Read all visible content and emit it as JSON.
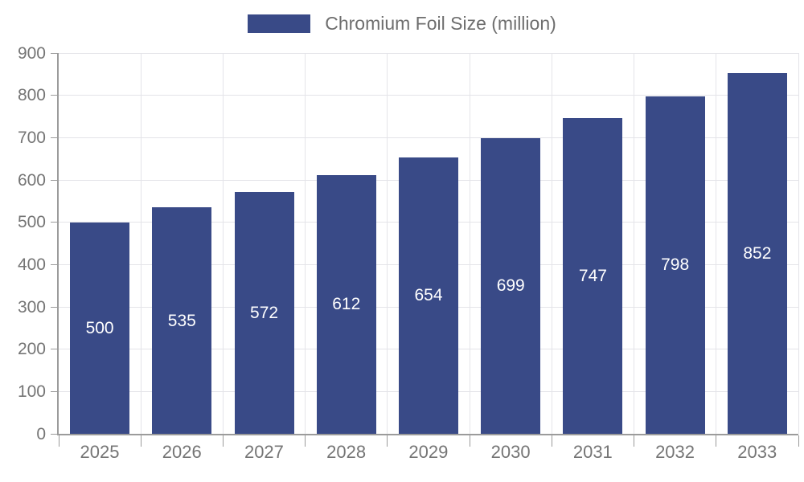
{
  "legend": {
    "label": "Chromium Foil Size (million)"
  },
  "chart_data": {
    "type": "bar",
    "title": "Chromium Foil Size (million)",
    "categories": [
      "2025",
      "2026",
      "2027",
      "2028",
      "2029",
      "2030",
      "2031",
      "2032",
      "2033"
    ],
    "series": [
      {
        "name": "Chromium Foil Size (million)",
        "values": [
          500,
          535,
          572,
          612,
          654,
          699,
          747,
          798,
          852
        ]
      }
    ],
    "values": [
      500,
      535,
      572,
      612,
      654,
      699,
      747,
      798,
      852
    ],
    "bar_labels": [
      "500",
      "535",
      "572",
      "612",
      "654",
      "699",
      "747",
      "798",
      "852"
    ],
    "xlabel": "",
    "ylabel": "",
    "ylim": [
      0,
      900
    ],
    "ytick_step": 100,
    "yticks": [
      "0",
      "100",
      "200",
      "300",
      "400",
      "500",
      "600",
      "700",
      "800",
      "900"
    ],
    "grid": true,
    "legend_position": "top-center",
    "colors": {
      "bar": "#394A87",
      "bar_value_label": "#ffffff",
      "grid": "#e4e4e9",
      "axis": "#9b9b9b",
      "tick": "#9b9b9b",
      "tick_label": "#757575",
      "legend_text": "#6e6e6e",
      "background": "#ffffff"
    }
  }
}
